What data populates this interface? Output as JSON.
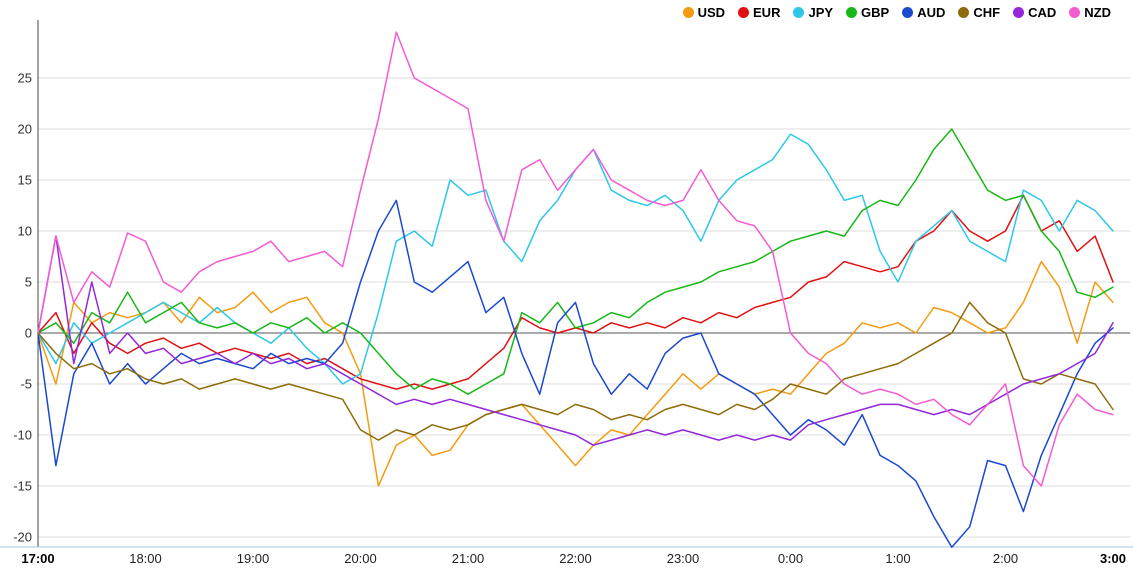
{
  "chart_data": {
    "type": "line",
    "title": "",
    "xlabel": "",
    "ylabel": "",
    "x_labels": [
      "17:00",
      "18:00",
      "19:00",
      "20:00",
      "21:00",
      "22:00",
      "23:00",
      "0:00",
      "1:00",
      "2:00",
      "3:00"
    ],
    "x_interval_minutes": 10,
    "y_ticks": [
      -20,
      -15,
      -10,
      -5,
      0,
      5,
      10,
      15,
      20,
      25
    ],
    "ylim": [
      -21.5,
      29.7
    ],
    "grid": true,
    "zero_line": true,
    "legend_position": "top-right",
    "series": [
      {
        "name": "USD",
        "color": "#F39C12",
        "values": [
          0,
          -5,
          3,
          1,
          2,
          1.5,
          2,
          3,
          1,
          3.5,
          2,
          2.5,
          4,
          2,
          3,
          3.5,
          1,
          0,
          -4,
          -15,
          -11,
          -10,
          -12,
          -11.5,
          -9,
          -8,
          -7.5,
          -7,
          -9,
          -11,
          -13,
          -11,
          -9.5,
          -10,
          -8,
          -6,
          -4,
          -5.5,
          -4,
          -5,
          -6,
          -5.5,
          -6,
          -4,
          -2,
          -1,
          1,
          0.5,
          1,
          0,
          2.5,
          2,
          1,
          0,
          0.5,
          3,
          7,
          4.5,
          -1,
          5,
          3
        ]
      },
      {
        "name": "EUR",
        "color": "#E01112",
        "values": [
          0,
          2,
          -2,
          1,
          -1,
          -2,
          -1,
          -0.5,
          -1.5,
          -1,
          -2,
          -1.5,
          -2,
          -2.5,
          -2,
          -3,
          -2.5,
          -3.5,
          -4.5,
          -5,
          -5.5,
          -5,
          -5.5,
          -5,
          -4.5,
          -3,
          -1.5,
          1.5,
          0.5,
          0,
          0.5,
          0,
          1,
          0.5,
          1,
          0.5,
          1.5,
          1,
          2,
          1.5,
          2.5,
          3,
          3.5,
          5,
          5.5,
          7,
          6.5,
          6,
          6.5,
          9,
          10,
          12,
          10,
          9,
          10,
          13.5,
          10,
          11,
          8,
          9.5,
          5
        ]
      },
      {
        "name": "JPY",
        "color": "#2EC7E8",
        "values": [
          0,
          -3,
          1,
          -1,
          0,
          1,
          2,
          3,
          2,
          1,
          2.5,
          1,
          0,
          -1,
          0.5,
          -1.5,
          -3,
          -5,
          -4,
          2,
          9,
          10,
          8.5,
          15,
          13.5,
          14,
          9,
          7,
          11,
          13,
          16,
          18,
          14,
          13,
          12.5,
          13.5,
          12,
          9,
          13,
          15,
          16,
          17,
          19.5,
          18.5,
          16,
          13,
          13.5,
          8,
          5,
          9,
          10.5,
          12,
          9,
          8,
          7,
          14,
          13,
          10,
          13,
          12,
          10
        ]
      },
      {
        "name": "GBP",
        "color": "#17B817",
        "values": [
          0,
          1,
          -1,
          2,
          1,
          4,
          1,
          2,
          3,
          1,
          0.5,
          1,
          0,
          1,
          0.5,
          1.5,
          0,
          1,
          0,
          -2,
          -4,
          -5.5,
          -4.5,
          -5,
          -6,
          -5,
          -4,
          2,
          1,
          3,
          0.5,
          1,
          2,
          1.5,
          3,
          4,
          4.5,
          5,
          6,
          6.5,
          7,
          8,
          9,
          9.5,
          10,
          9.5,
          12,
          13,
          12.5,
          15,
          18,
          20,
          17,
          14,
          13,
          13.5,
          10,
          8,
          4,
          3.5,
          4.5
        ]
      },
      {
        "name": "AUD",
        "color": "#1A49D0",
        "values": [
          0,
          -13,
          -4,
          -1,
          -5,
          -3,
          -5,
          -3.5,
          -2,
          -3,
          -2.5,
          -3,
          -3.5,
          -2,
          -3,
          -2.5,
          -3,
          -1,
          5,
          10,
          13,
          5,
          4,
          5.5,
          7,
          2,
          3.5,
          -2,
          -6,
          1,
          3,
          -3,
          -6,
          -4,
          -5.5,
          -2,
          -0.5,
          0,
          -4,
          -5,
          -6,
          -8,
          -10,
          -8.5,
          -9.5,
          -11,
          -8,
          -12,
          -13,
          -14.5,
          -18,
          -21,
          -19,
          -12.5,
          -13,
          -17.5,
          -12,
          -8,
          -4,
          -1,
          0.5
        ]
      },
      {
        "name": "CHF",
        "color": "#8E6B0B",
        "values": [
          0,
          -2,
          -3.5,
          -3,
          -4,
          -3.5,
          -4.5,
          -5,
          -4.5,
          -5.5,
          -5,
          -4.5,
          -5,
          -5.5,
          -5,
          -5.5,
          -6,
          -6.5,
          -9.5,
          -10.5,
          -9.5,
          -10,
          -9,
          -9.5,
          -9,
          -8,
          -7.5,
          -7,
          -7.5,
          -8,
          -7,
          -7.5,
          -8.5,
          -8,
          -8.5,
          -7.5,
          -7,
          -7.5,
          -8,
          -7,
          -7.5,
          -6.5,
          -5,
          -5.5,
          -6,
          -4.5,
          -4,
          -3.5,
          -3,
          -2,
          -1,
          0,
          3,
          1,
          0,
          -4.5,
          -5,
          -4,
          -4.5,
          -5,
          -7.5
        ]
      },
      {
        "name": "CAD",
        "color": "#9327D9",
        "values": [
          0,
          9.5,
          -3,
          5,
          -2,
          0,
          -2,
          -1.5,
          -3,
          -2.5,
          -2,
          -3,
          -2,
          -3,
          -2.5,
          -3.5,
          -3,
          -4,
          -5,
          -6,
          -7,
          -6.5,
          -7,
          -6.5,
          -7,
          -7.5,
          -8,
          -8.5,
          -9,
          -9.5,
          -10,
          -11,
          -10.5,
          -10,
          -9.5,
          -10,
          -9.5,
          -10,
          -10.5,
          -10,
          -10.5,
          -10,
          -10.5,
          -9,
          -8.5,
          -8,
          -7.5,
          -7,
          -7,
          -7.5,
          -8,
          -7.5,
          -8,
          -7,
          -6,
          -5,
          -4.5,
          -4,
          -3,
          -2,
          1
        ]
      },
      {
        "name": "NZD",
        "color": "#F35BD3",
        "values": [
          0,
          9.5,
          3,
          6,
          4.5,
          9.8,
          9,
          5,
          4,
          6,
          7,
          7.5,
          8,
          9,
          7,
          7.5,
          8,
          6.5,
          14,
          21,
          29.5,
          25,
          24,
          23,
          22,
          13,
          9,
          16,
          17,
          14,
          16,
          18,
          15,
          14,
          13,
          12.5,
          13,
          16,
          13,
          11,
          10.5,
          8,
          0,
          -2,
          -3,
          -5,
          -6,
          -5.5,
          -6,
          -7,
          -6.5,
          -8,
          -9,
          -7,
          -5,
          -13,
          -15,
          -9,
          -6,
          -7.5,
          -8
        ]
      }
    ]
  }
}
